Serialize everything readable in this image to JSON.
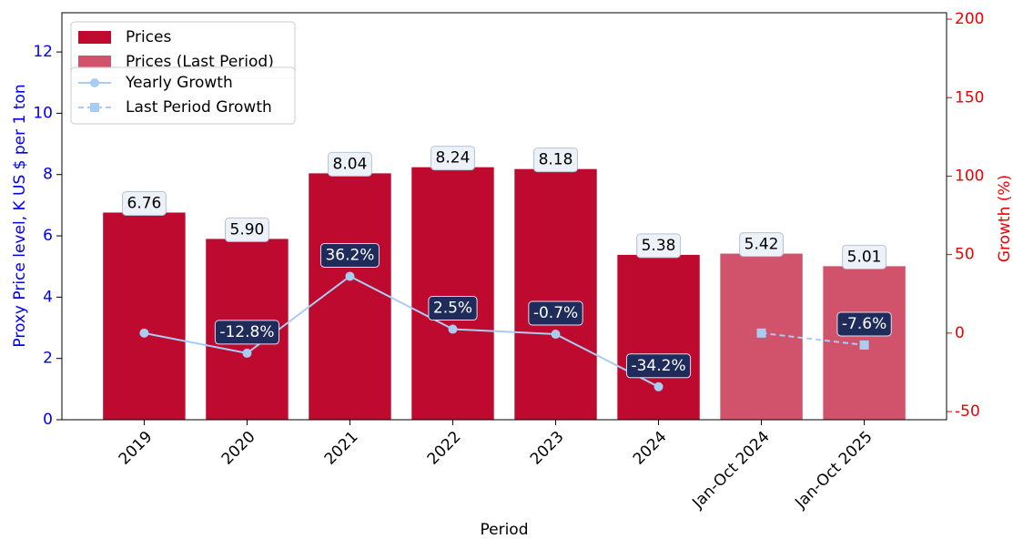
{
  "chart_data": {
    "type": "bar",
    "categories": [
      "2019",
      "2020",
      "2021",
      "2022",
      "2023",
      "2024",
      "Jan-Oct 2024",
      "Jan-Oct 2025"
    ],
    "x_label": "Period",
    "y_label": "Proxy Price level, K US $ per 1 ton",
    "y2_label": "Growth (%)",
    "ylim": [
      0,
      13.28
    ],
    "yticks": [
      0,
      2,
      4,
      6,
      8,
      10,
      12
    ],
    "y2lim": [
      -55.2,
      204.1
    ],
    "y2ticks": [
      -50,
      0,
      50,
      100,
      150,
      200
    ],
    "legend": "upper left",
    "series": [
      {
        "name": "Prices",
        "color": "#be0a2f",
        "type": "bar",
        "values": [
          6.76,
          5.9,
          8.04,
          8.24,
          8.18,
          5.38,
          null,
          null
        ],
        "value_labels": [
          "6.76",
          "5.90",
          "8.04",
          "8.24",
          "8.18",
          "5.38",
          null,
          null
        ]
      },
      {
        "name": "Prices (Last Period)",
        "color": "#d0536b",
        "type": "bar",
        "values": [
          null,
          null,
          null,
          null,
          null,
          null,
          5.42,
          5.01
        ],
        "value_labels": [
          null,
          null,
          null,
          null,
          null,
          null,
          "5.42",
          "5.01"
        ]
      },
      {
        "name": "Yearly Growth",
        "color": "#a9cdf2",
        "type": "line",
        "axis": "y2",
        "marker": "circle",
        "values": [
          0,
          -12.8,
          36.2,
          2.5,
          -0.7,
          -34.2,
          null,
          null
        ],
        "value_labels": [
          null,
          "-12.8%",
          "36.2%",
          "2.5%",
          "-0.7%",
          "-34.2%",
          null,
          null
        ]
      },
      {
        "name": "Last Period Growth",
        "color": "#a9cdf2",
        "type": "line",
        "axis": "y2",
        "marker": "square",
        "dashed": true,
        "values": [
          null,
          null,
          null,
          null,
          null,
          null,
          0,
          -7.6
        ],
        "value_labels": [
          null,
          null,
          null,
          null,
          null,
          null,
          null,
          "-7.6%"
        ]
      }
    ]
  }
}
